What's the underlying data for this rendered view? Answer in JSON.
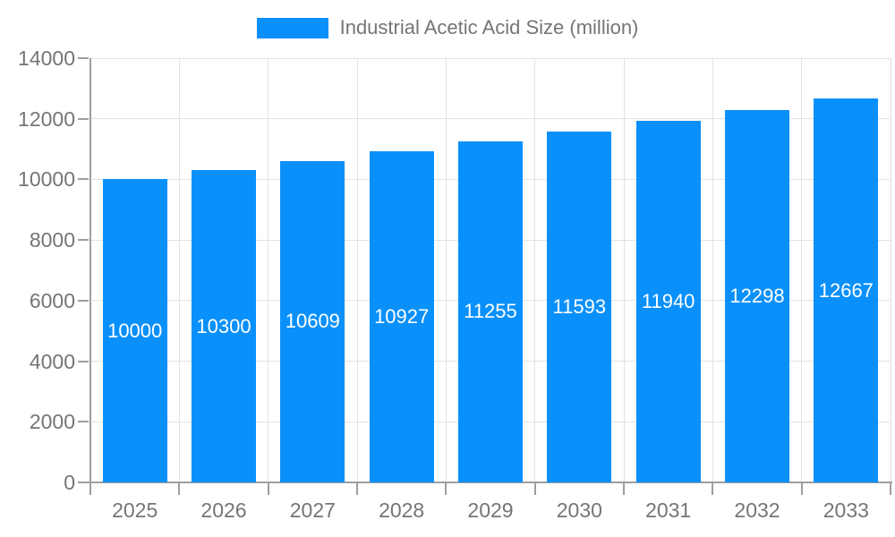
{
  "legend": {
    "label": "Industrial Acetic Acid Size (million)"
  },
  "chart_data": {
    "type": "bar",
    "title": "Industrial Acetic Acid Size (million)",
    "categories": [
      "2025",
      "2026",
      "2027",
      "2028",
      "2029",
      "2030",
      "2031",
      "2032",
      "2033"
    ],
    "values": [
      10000,
      10300,
      10609,
      10927,
      11255,
      11593,
      11940,
      12298,
      12667
    ],
    "xlabel": "",
    "ylabel": "",
    "ylim": [
      0,
      14000
    ],
    "yticks": [
      0,
      2000,
      4000,
      6000,
      8000,
      10000,
      12000,
      14000
    ],
    "grid": "on",
    "legend_position": "top-center",
    "value_labels": "inside-center-white",
    "colors": {
      "bar": "#0a90fa",
      "axis": "#9e9e9e",
      "grid": "#e2e2e2",
      "text": "#757575",
      "value_label": "#ffffff"
    }
  }
}
